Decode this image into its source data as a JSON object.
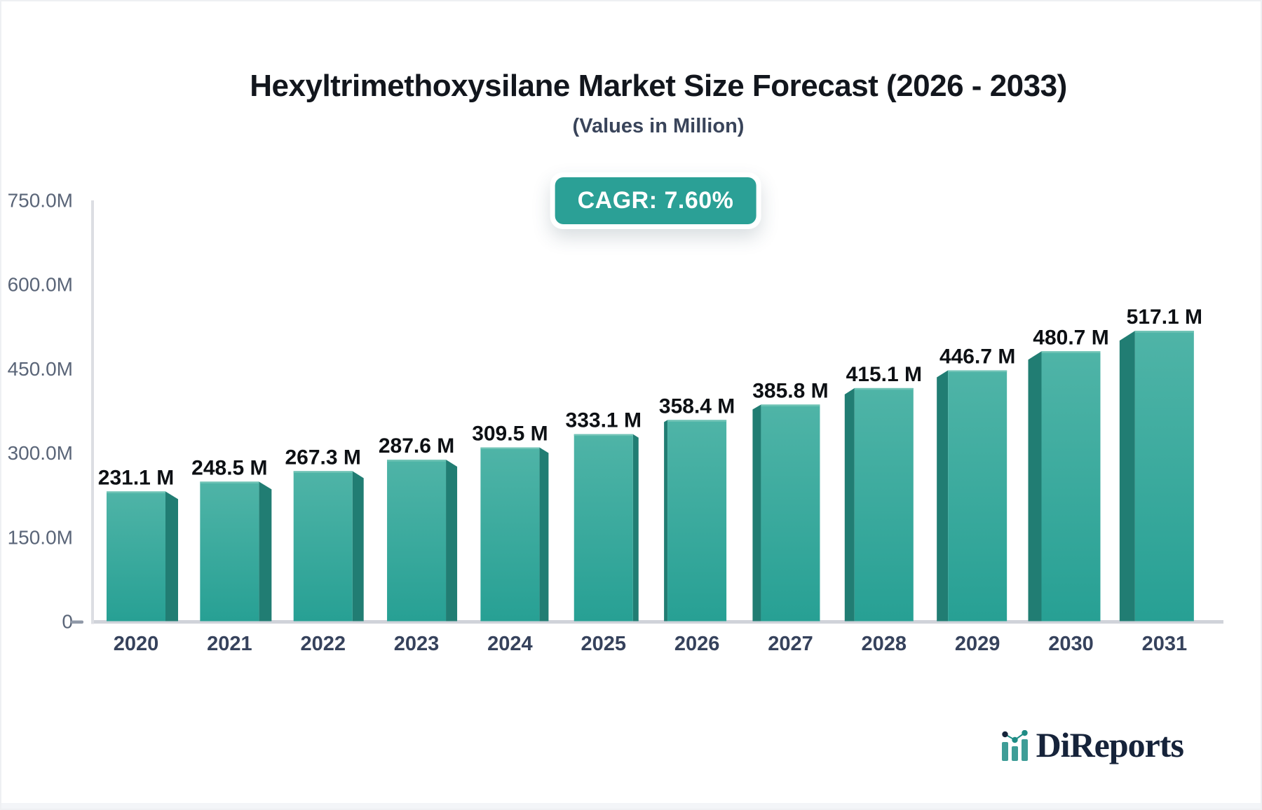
{
  "header": {
    "title": "Hexyltrimethoxysilane Market Size Forecast (2026 - 2033)",
    "subtitle": "(Values in Million)"
  },
  "badge": {
    "label": "CAGR: 7.60%"
  },
  "logo": {
    "text": "DiReports",
    "icon": "mini-bar-chart-logo-icon"
  },
  "colors": {
    "bar_front_top": "#4fb4a7",
    "bar_front_bottom": "#27a094",
    "bar_top_bevel": "#6fc3b5",
    "bar_side": "#217d73",
    "badge_bg": "#2ba096",
    "axis_line": "#dcdee3",
    "baseline": "#d0d3da",
    "zero_dash": "#9099a8",
    "tick_text": "#5a6578",
    "year_text": "#36425c",
    "value_text": "#0d1014",
    "logo_teal": "#3e9d97",
    "logo_dark": "#1e8c85",
    "logo_navy": "#16233a"
  },
  "chart_data": {
    "type": "bar",
    "title": "Hexyltrimethoxysilane Market Size Forecast (2026 - 2033)",
    "subtitle": "(Values in Million)",
    "cagr_label": "CAGR: 7.60%",
    "categories": [
      "2020",
      "2021",
      "2022",
      "2023",
      "2024",
      "2025",
      "2026",
      "2027",
      "2028",
      "2029",
      "2030",
      "2031"
    ],
    "values": [
      231.1,
      248.5,
      267.3,
      287.6,
      309.5,
      333.1,
      358.4,
      385.8,
      415.1,
      446.7,
      480.7,
      517.1
    ],
    "value_labels": [
      "231.1 M",
      "248.5 M",
      "267.3 M",
      "287.6 M",
      "309.5 M",
      "333.1 M",
      "358.4 M",
      "385.8 M",
      "415.1 M",
      "446.7 M",
      "480.7 M",
      "517.1 M"
    ],
    "unit": "Million",
    "y_ticks": [
      {
        "value": 0,
        "label": "0"
      },
      {
        "value": 150,
        "label": "150.0M"
      },
      {
        "value": 300,
        "label": "300.0M"
      },
      {
        "value": 450,
        "label": "450.0M"
      },
      {
        "value": 600,
        "label": "600.0M"
      },
      {
        "value": 750,
        "label": "750.0M"
      }
    ],
    "ylim": [
      0,
      750
    ],
    "grid": false,
    "legend": false,
    "bar_style": "3d-perspective-teal"
  }
}
